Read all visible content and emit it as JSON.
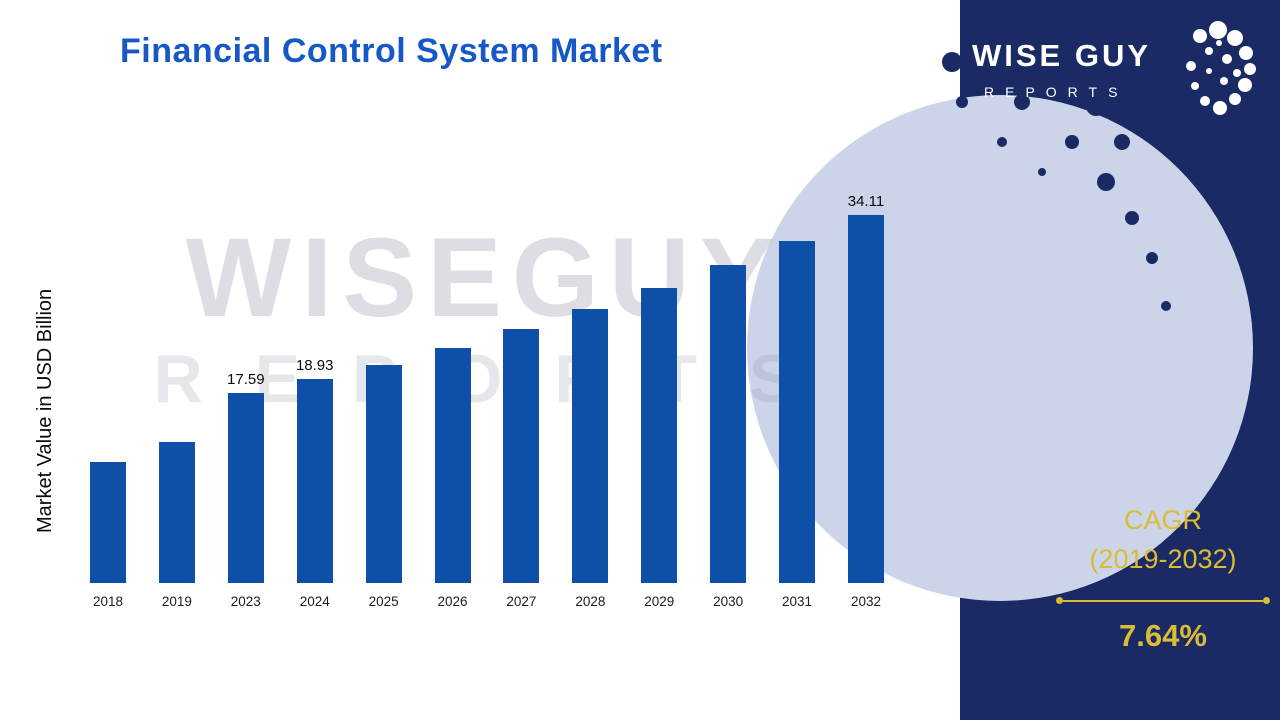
{
  "title": "Financial Control System Market",
  "ylabel": "Market Value in USD Billion",
  "watermark": {
    "line1": "WISEGUY",
    "line2": "REPORTS"
  },
  "brand": {
    "logo_line1": "WISE GUY",
    "logo_line2": "REPORTS",
    "cagr_label": "CAGR",
    "cagr_period": "(2019-2032)",
    "cagr_value": "7.64%"
  },
  "colors": {
    "bar": "#0e4fa8",
    "title": "#1658c5",
    "panel": "#1a2a64",
    "accent_gold": "#dcbc32",
    "face_circle": "#ccd4e9"
  },
  "chart_data": {
    "type": "bar",
    "title": "Financial Control System Market",
    "xlabel": "",
    "ylabel": "Market Value in USD Billion",
    "categories": [
      "2018",
      "2019",
      "2023",
      "2024",
      "2025",
      "2026",
      "2027",
      "2028",
      "2029",
      "2030",
      "2031",
      "2032"
    ],
    "values": [
      11.2,
      13.1,
      17.59,
      18.93,
      20.2,
      21.8,
      23.5,
      25.4,
      27.3,
      29.5,
      31.7,
      34.11
    ],
    "data_labels": [
      null,
      null,
      "17.59",
      "18.93",
      null,
      null,
      null,
      null,
      null,
      null,
      null,
      "34.11"
    ],
    "ylim": [
      0,
      38
    ],
    "grid": false,
    "legend": false,
    "bar_color": "#0e4fa8"
  }
}
